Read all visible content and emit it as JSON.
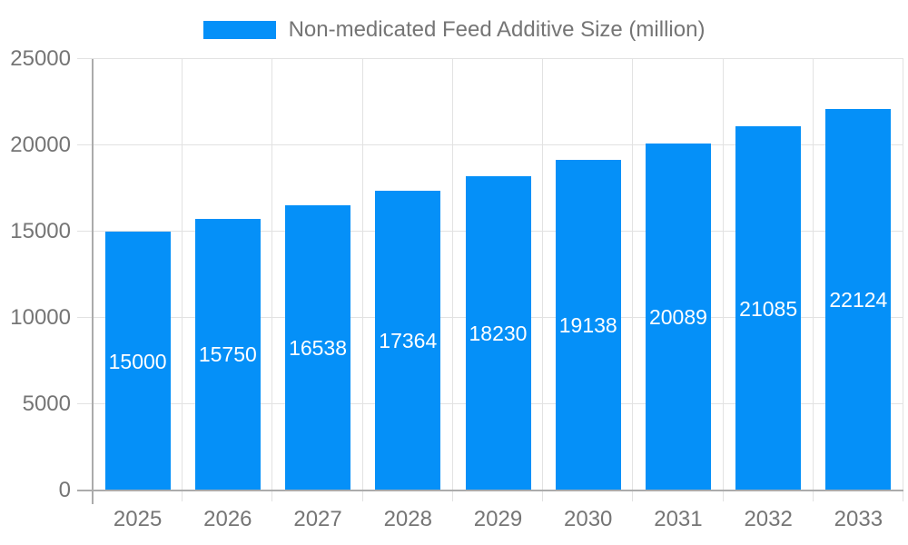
{
  "legend": {
    "label": "Non-medicated Feed Additive Size (million)"
  },
  "chart_data": {
    "type": "bar",
    "title": "Non-medicated Feed Additive Size (million)",
    "categories": [
      "2025",
      "2026",
      "2027",
      "2028",
      "2029",
      "2030",
      "2031",
      "2032",
      "2033"
    ],
    "series": [
      {
        "name": "Non-medicated Feed Additive Size (million)",
        "values": [
          15000,
          15750,
          16538,
          17364,
          18230,
          19138,
          20089,
          21085,
          22124
        ],
        "color": "#0590f8"
      }
    ],
    "value_labels": {
      "visible": true,
      "position": "inside-center",
      "color": "#ffffff"
    },
    "xlabel": "",
    "ylabel": "",
    "ylim": [
      0,
      25000
    ],
    "yticks": [
      0,
      5000,
      10000,
      15000,
      20000,
      25000
    ],
    "grid": true,
    "legend_position": "top-center"
  },
  "colors": {
    "bar": "#0590f8",
    "axis_line": "#ababab",
    "grid_line": "#e2e2e2",
    "tick_text": "#757575",
    "legend_text": "#757575",
    "value_label_text": "#ffffff",
    "background": "#ffffff"
  }
}
